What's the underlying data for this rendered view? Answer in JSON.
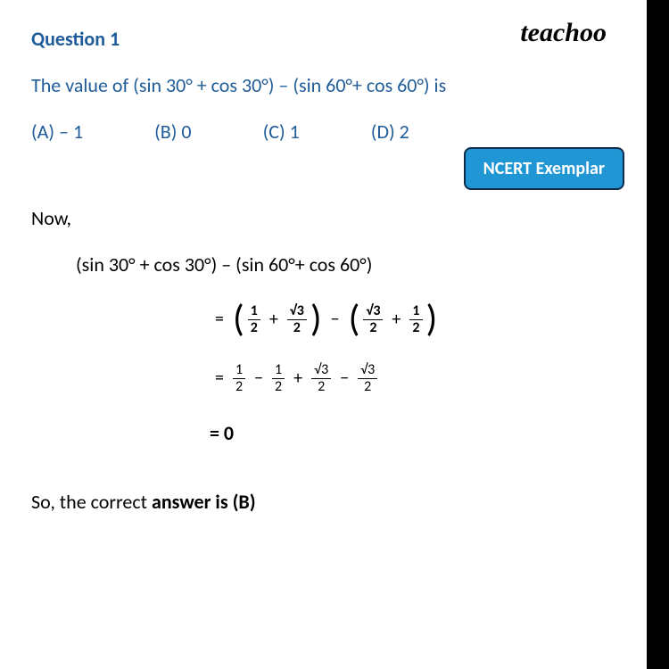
{
  "brand": "teachoo",
  "question": {
    "title": "Question 1",
    "text": "The value of (sin 30° + cos 30°) – (sin 60°+ cos 60°) is",
    "options": {
      "a": "(A) – 1",
      "b": "(B) 0",
      "c": "(C) 1",
      "d": "(D) 2"
    }
  },
  "badge": "NCERT Exemplar",
  "solution": {
    "intro": "Now,",
    "expr": "(sin 30° + cos 30°) – (sin 60°+ cos 60°)",
    "step_final": "= 0",
    "conclusion_pre": "So, the correct ",
    "conclusion_bold": "answer is (B)"
  },
  "colors": {
    "question_color": "#1f5c99",
    "badge_bg": "#2196d4",
    "badge_border": "#0d2b4a",
    "sidebar": "#000000",
    "text": "#000000",
    "bg": "#ffffff"
  }
}
